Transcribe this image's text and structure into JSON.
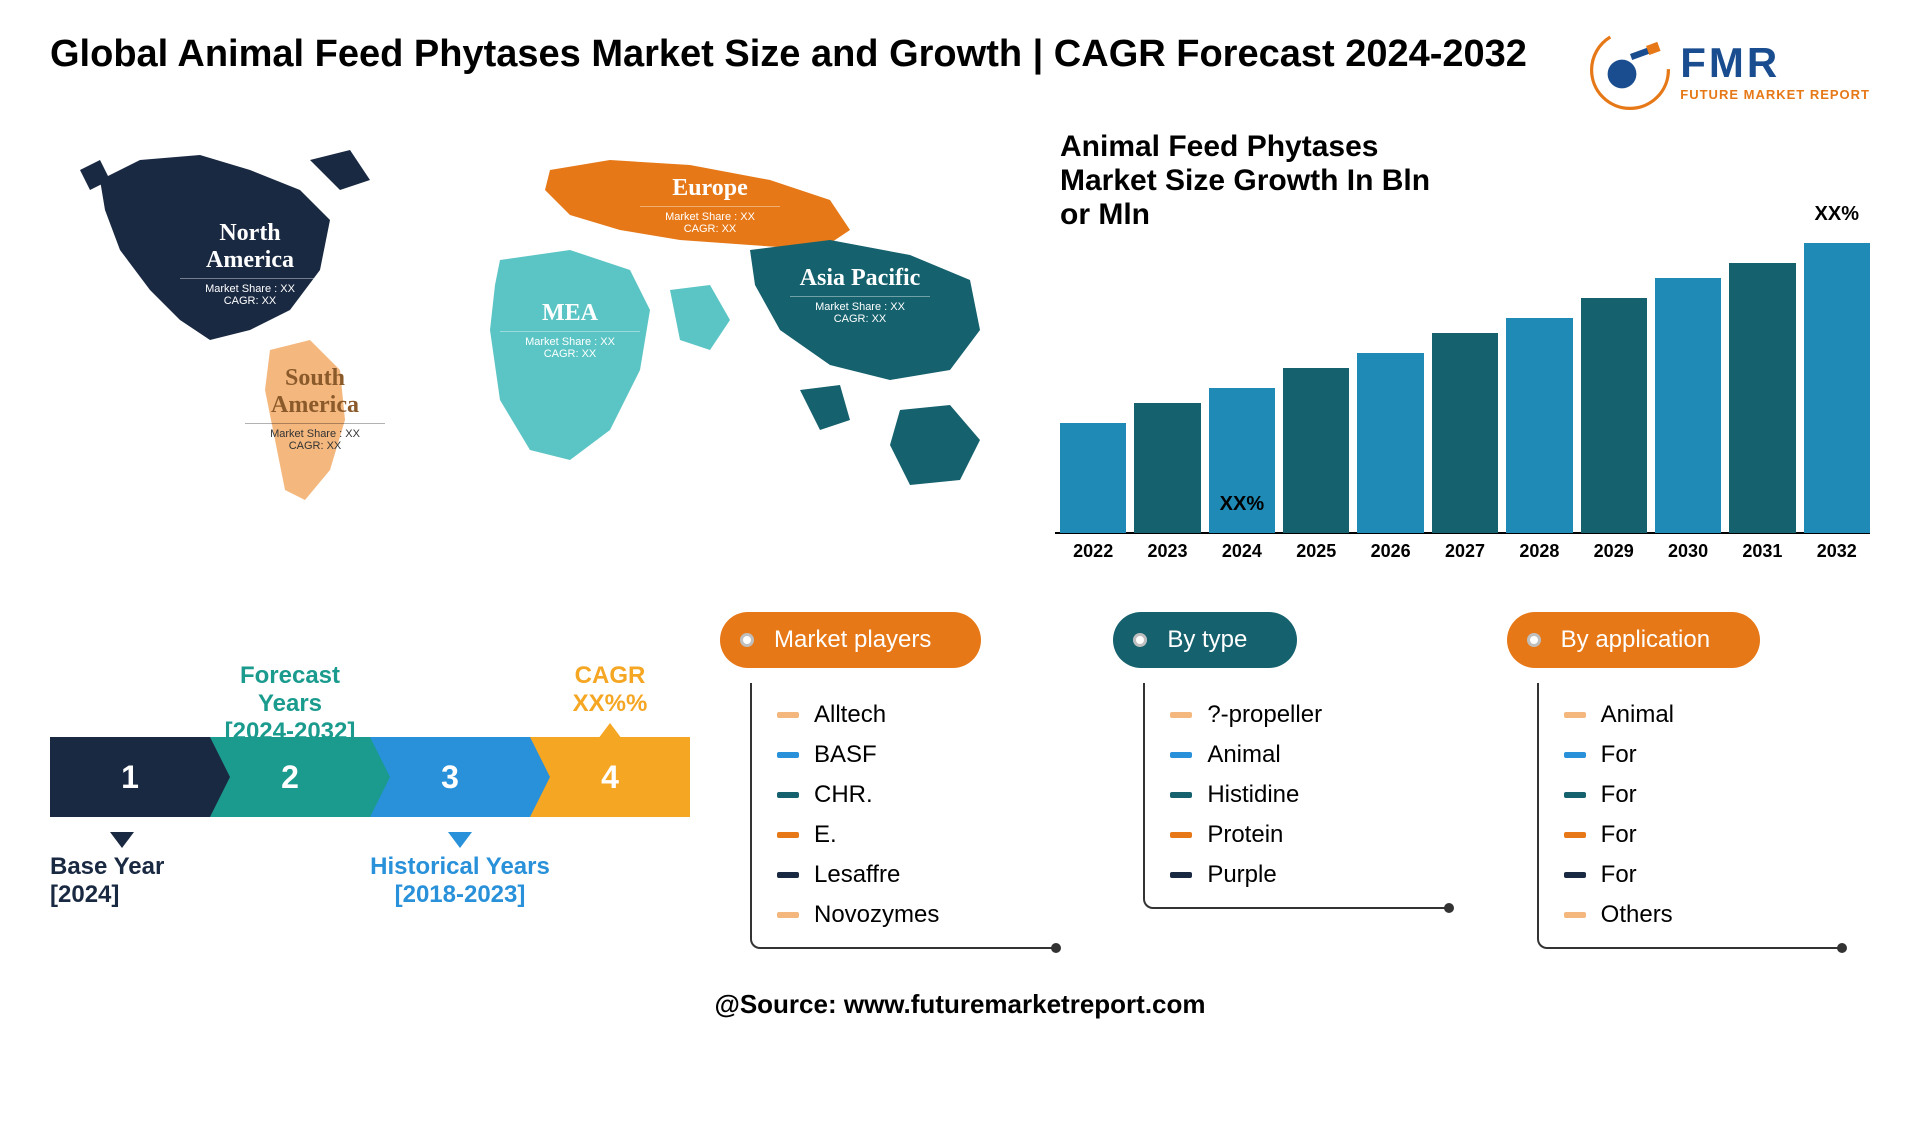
{
  "title": "Global Animal Feed Phytases Market Size and Growth | CAGR Forecast 2024-2032",
  "logo": {
    "main": "FMR",
    "sub": "FUTURE MARKET REPORT"
  },
  "map": {
    "regions": [
      {
        "name": "North America",
        "share": "Market Share : XX",
        "cagr": "CAGR: XX",
        "color": "#1a2942"
      },
      {
        "name": "South America",
        "share": "Market Share : XX",
        "cagr": "CAGR: XX",
        "color": "#f4b77e"
      },
      {
        "name": "Europe",
        "share": "Market Share : XX",
        "cagr": "CAGR: XX",
        "color": "#e67817"
      },
      {
        "name": "MEA",
        "share": "Market Share : XX",
        "cagr": "CAGR: XX",
        "color": "#5bc4c4"
      },
      {
        "name": "Asia Pacific",
        "share": "Market Share : XX",
        "cagr": "CAGR: XX",
        "color": "#15616d"
      }
    ]
  },
  "chart": {
    "title": "Animal Feed Phytases Market Size Growth In Bln or Mln",
    "annotations": {
      "start": "XX%",
      "end": "XX%"
    },
    "bars": [
      {
        "year": "2022",
        "value": 110,
        "color": "#1f8ab5"
      },
      {
        "year": "2023",
        "value": 130,
        "color": "#15616d"
      },
      {
        "year": "2024",
        "value": 145,
        "color": "#1f8ab5"
      },
      {
        "year": "2025",
        "value": 165,
        "color": "#15616d"
      },
      {
        "year": "2026",
        "value": 180,
        "color": "#1f8ab5"
      },
      {
        "year": "2027",
        "value": 200,
        "color": "#15616d"
      },
      {
        "year": "2028",
        "value": 215,
        "color": "#1f8ab5"
      },
      {
        "year": "2029",
        "value": 235,
        "color": "#15616d"
      },
      {
        "year": "2030",
        "value": 255,
        "color": "#1f8ab5"
      },
      {
        "year": "2031",
        "value": 270,
        "color": "#15616d"
      },
      {
        "year": "2032",
        "value": 290,
        "color": "#1f8ab5"
      }
    ]
  },
  "timeline": {
    "forecast": {
      "label": "Forecast Years",
      "range": "[2024-2032]",
      "color": "#1a9b8e"
    },
    "cagr": {
      "label": "CAGR",
      "value": "XX%%",
      "color": "#f5a623"
    },
    "base": {
      "label": "Base Year",
      "range": "[2024]",
      "color": "#1a2942"
    },
    "historical": {
      "label": "Historical Years",
      "range": "[2018-2023]",
      "color": "#2891d9"
    },
    "segments": [
      "1",
      "2",
      "3",
      "4"
    ]
  },
  "categories": [
    {
      "title": "Market players",
      "header_color": "orange",
      "items": [
        {
          "text": "Alltech",
          "color": "#f4b77e"
        },
        {
          "text": "BASF",
          "color": "#2891d9"
        },
        {
          "text": "CHR.",
          "color": "#15616d"
        },
        {
          "text": "E.",
          "color": "#e67817"
        },
        {
          "text": "Lesaffre",
          "color": "#1a2942"
        },
        {
          "text": "Novozymes",
          "color": "#f4b77e"
        }
      ]
    },
    {
      "title": "By type",
      "header_color": "teal",
      "items": [
        {
          "text": "?-propeller",
          "color": "#f4b77e"
        },
        {
          "text": "Animal",
          "color": "#2891d9"
        },
        {
          "text": "Histidine",
          "color": "#15616d"
        },
        {
          "text": "Protein",
          "color": "#e67817"
        },
        {
          "text": "Purple",
          "color": "#1a2942"
        }
      ]
    },
    {
      "title": "By application",
      "header_color": "orange",
      "items": [
        {
          "text": "Animal",
          "color": "#f4b77e"
        },
        {
          "text": "For",
          "color": "#2891d9"
        },
        {
          "text": "For",
          "color": "#15616d"
        },
        {
          "text": "For",
          "color": "#e67817"
        },
        {
          "text": "For",
          "color": "#1a2942"
        },
        {
          "text": "Others",
          "color": "#f4b77e"
        }
      ]
    }
  ],
  "source": "@Source: www.futuremarketreport.com"
}
